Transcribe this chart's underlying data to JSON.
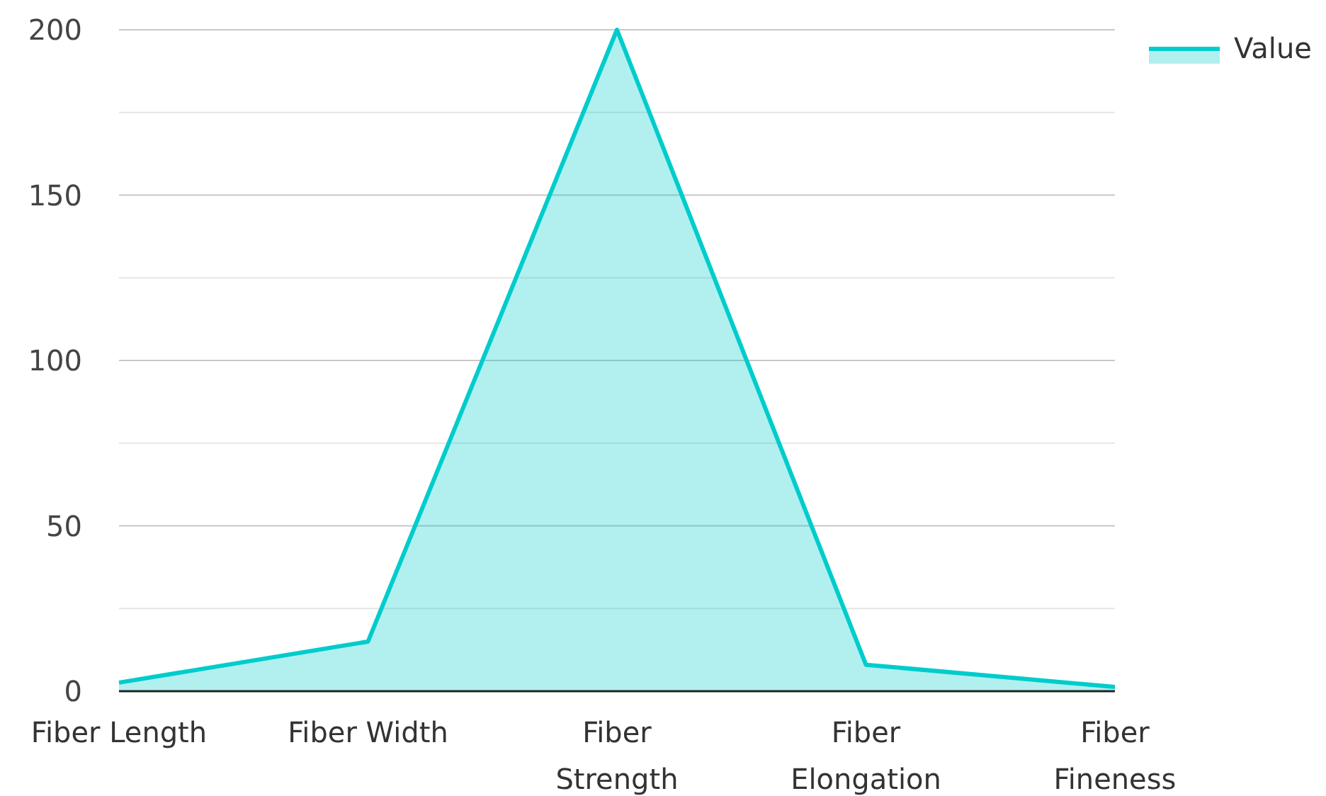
{
  "chart_data": {
    "type": "area",
    "categories": [
      "Fiber Length",
      "Fiber Width",
      "Fiber Strength",
      "Fiber Elongation",
      "Fiber Fineness"
    ],
    "series": [
      {
        "name": "Value",
        "color": "#00cccc",
        "values": [
          2.6,
          15,
          200,
          8,
          1.3
        ]
      }
    ],
    "ylim": [
      0,
      200
    ],
    "yticks": [
      0,
      {
        "value": 25,
        "label": null
      },
      50,
      {
        "value": 75,
        "label": null
      },
      100,
      {
        "value": 125,
        "label": null
      },
      150,
      {
        "value": 175,
        "label": null
      },
      200
    ],
    "grid": "y",
    "legend": "top right"
  }
}
